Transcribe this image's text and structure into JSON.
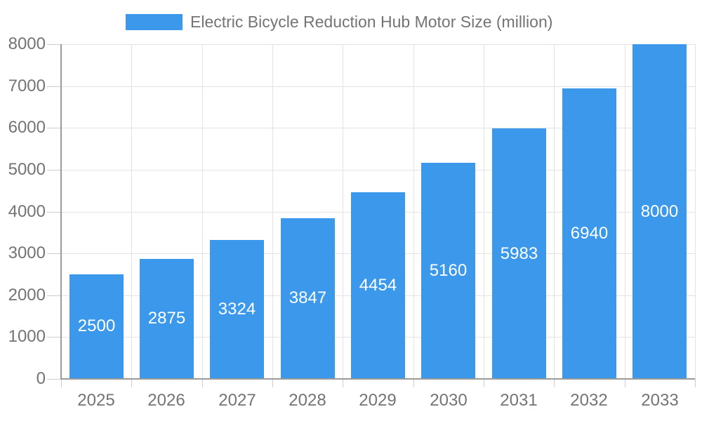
{
  "chart_data": {
    "type": "bar",
    "title": "Electric Bicycle Reduction Hub Motor Size (million)",
    "legend_entries": [
      "Electric Bicycle Reduction Hub Motor Size (million)"
    ],
    "legend_position": "top-center",
    "categories": [
      "2025",
      "2026",
      "2027",
      "2028",
      "2029",
      "2030",
      "2031",
      "2032",
      "2033"
    ],
    "values": [
      2500,
      2875,
      3324,
      3847,
      4454,
      5160,
      5983,
      6940,
      8000
    ],
    "bar_value_labels": [
      "2500",
      "2875",
      "3324",
      "3847",
      "4454",
      "5160",
      "5983",
      "6940",
      "8000"
    ],
    "xlabel": "",
    "ylabel": "",
    "ylim": [
      0,
      8000
    ],
    "ytick_interval": 1000,
    "yticks": [
      0,
      1000,
      2000,
      3000,
      4000,
      5000,
      6000,
      7000,
      8000
    ],
    "grid": true,
    "bar_value_label_placement": "inside-center"
  },
  "colors": {
    "bar": "#3B98EB",
    "bar_value_label_text": "#FFFFFF",
    "axis_text": "#747474",
    "legend_text": "#747474",
    "grid_line": "#E3E3E3",
    "tick_line": "#CCCCCC",
    "axis_line": "#9A9A9A",
    "background": "#FFFFFF"
  }
}
